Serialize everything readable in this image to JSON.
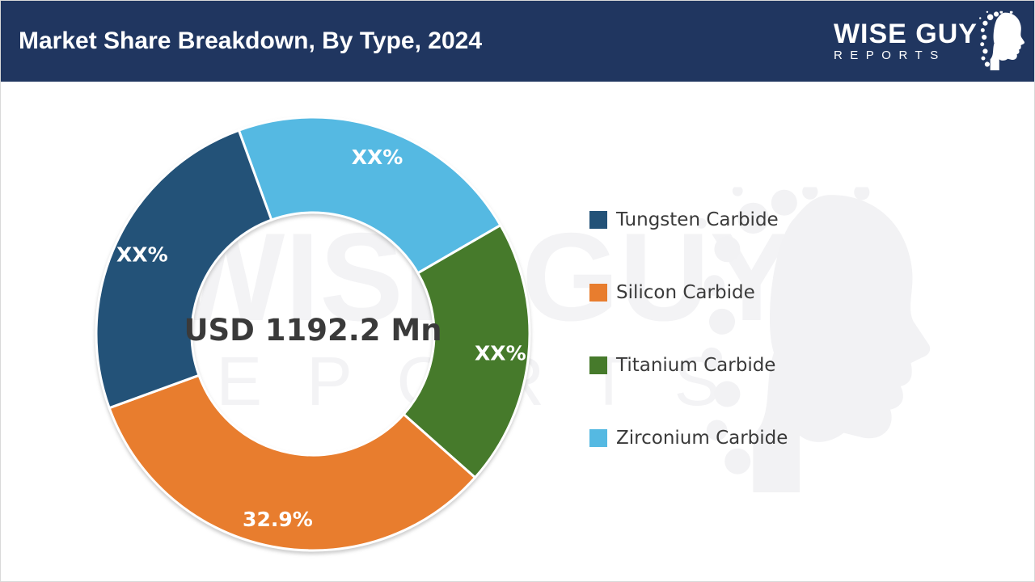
{
  "header": {
    "title": "Market Share Breakdown, By Type, 2024"
  },
  "logo": {
    "name": "WISE GUY",
    "subtitle": "REPORTS"
  },
  "watermark": {
    "line1": "WISE GUY",
    "line2": "REPORTS"
  },
  "colors": {
    "header_bg": "#203660",
    "tungsten": "#235278",
    "silicon": "#E87D2E",
    "titanium": "#467A2B",
    "zirconium": "#55B9E2",
    "center_text": "#3A3A3A"
  },
  "chart_data": {
    "type": "pie",
    "donut": true,
    "title": "Market Share Breakdown, By Type, 2024",
    "center_label": "USD 1192.2 Mn",
    "units": "percent share",
    "direction": "clockwise",
    "start_angle_deg": -20,
    "legend_position": "right",
    "slices": [
      {
        "id": "zirconium-carbide",
        "label": "Zirconium Carbide",
        "value": 22.2,
        "display": "XX%",
        "color": "#55B9E2"
      },
      {
        "id": "titanium-carbide",
        "label": "Titanium Carbide",
        "value": 19.9,
        "display": "XX%",
        "color": "#467A2B"
      },
      {
        "id": "silicon-carbide",
        "label": "Silicon Carbide",
        "value": 32.9,
        "display": "32.9%",
        "color": "#E87D2E"
      },
      {
        "id": "tungsten-carbide",
        "label": "Tungsten Carbide",
        "value": 25.0,
        "display": "XX%",
        "color": "#235278"
      }
    ],
    "legend": [
      {
        "label": "Tungsten Carbide",
        "color": "#235278"
      },
      {
        "label": "Silicon Carbide",
        "color": "#E87D2E"
      },
      {
        "label": "Titanium Carbide",
        "color": "#467A2B"
      },
      {
        "label": "Zirconium Carbide",
        "color": "#55B9E2"
      }
    ]
  }
}
